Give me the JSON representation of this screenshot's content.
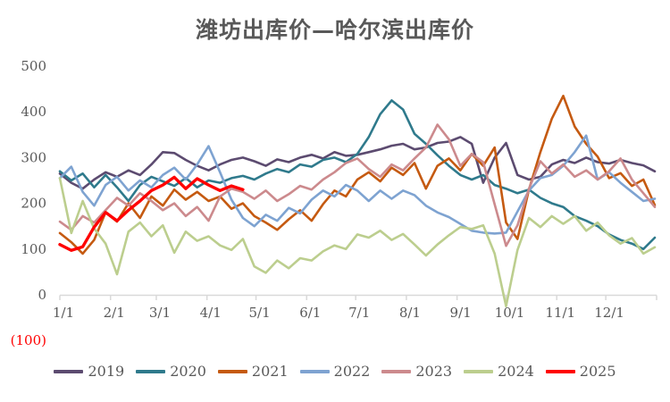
{
  "title": "潍坊出库价—哈尔滨出库价",
  "chart_data": {
    "type": "line",
    "title": "潍坊出库价—哈尔滨出库价",
    "xlabel": "",
    "ylabel": "",
    "ylim": [
      -100,
      500
    ],
    "grid": false,
    "legend_position": "bottom",
    "y_ticks": [
      {
        "label": "500",
        "value": 500,
        "color": "#595959"
      },
      {
        "label": "400",
        "value": 400,
        "color": "#595959"
      },
      {
        "label": "300",
        "value": 300,
        "color": "#595959"
      },
      {
        "label": "200",
        "value": 200,
        "color": "#595959"
      },
      {
        "label": "100",
        "value": 100,
        "color": "#595959"
      },
      {
        "label": "0",
        "value": 0,
        "color": "#595959"
      },
      {
        "label": "(100)",
        "value": -100,
        "color": "#FF0000"
      }
    ],
    "x_ticks": [
      {
        "label": "1/1",
        "day": 0
      },
      {
        "label": "2/1",
        "day": 31
      },
      {
        "label": "3/1",
        "day": 59
      },
      {
        "label": "4/1",
        "day": 90
      },
      {
        "label": "5/1",
        "day": 120
      },
      {
        "label": "6/1",
        "day": 151
      },
      {
        "label": "7/1",
        "day": 181
      },
      {
        "label": "8/1",
        "day": 212
      },
      {
        "label": "9/1",
        "day": 243
      },
      {
        "label": "10/1",
        "day": 273
      },
      {
        "label": "11/1",
        "day": 304
      },
      {
        "label": "12/1",
        "day": 334
      }
    ],
    "x_step_days": 7,
    "axis_color": "#D9D9D9",
    "series": [
      {
        "name": "2019",
        "color": "#5C4B70",
        "width": 2.6,
        "values": [
          265,
          245,
          232,
          252,
          268,
          258,
          272,
          262,
          285,
          312,
          310,
          295,
          282,
          272,
          285,
          295,
          300,
          292,
          282,
          296,
          290,
          300,
          306,
          298,
          312,
          304,
          306,
          312,
          318,
          326,
          330,
          318,
          322,
          332,
          335,
          345,
          330,
          245,
          300,
          332,
          262,
          252,
          258,
          285,
          295,
          288,
          300,
          290,
          287,
          295,
          288,
          283,
          270
        ]
      },
      {
        "name": "2020",
        "color": "#2F7A8C",
        "width": 2.6,
        "values": [
          270,
          250,
          265,
          235,
          262,
          235,
          205,
          240,
          258,
          248,
          238,
          255,
          235,
          250,
          245,
          255,
          260,
          252,
          265,
          275,
          268,
          285,
          280,
          295,
          300,
          290,
          308,
          345,
          395,
          425,
          405,
          352,
          330,
          305,
          282,
          262,
          252,
          262,
          240,
          232,
          222,
          230,
          212,
          200,
          192,
          172,
          162,
          150,
          132,
          120,
          112,
          100,
          125
        ]
      },
      {
        "name": "2021",
        "color": "#C55A11",
        "width": 2.6,
        "values": [
          135,
          115,
          90,
          120,
          180,
          160,
          200,
          168,
          215,
          195,
          230,
          208,
          225,
          205,
          215,
          188,
          200,
          172,
          158,
          142,
          165,
          185,
          162,
          198,
          228,
          215,
          252,
          268,
          248,
          278,
          262,
          288,
          232,
          282,
          298,
          272,
          308,
          282,
          322,
          158,
          122,
          230,
          312,
          385,
          435,
          368,
          330,
          302,
          255,
          266,
          238,
          252,
          196
        ]
      },
      {
        "name": "2022",
        "color": "#7EA3D1",
        "width": 2.6,
        "values": [
          255,
          280,
          225,
          195,
          240,
          258,
          228,
          250,
          235,
          262,
          278,
          252,
          285,
          325,
          268,
          208,
          168,
          150,
          175,
          162,
          190,
          178,
          208,
          228,
          215,
          240,
          228,
          205,
          228,
          210,
          228,
          218,
          195,
          180,
          170,
          155,
          140,
          136,
          134,
          136,
          182,
          228,
          255,
          262,
          282,
          312,
          348,
          252,
          268,
          245,
          225,
          205,
          210
        ]
      },
      {
        "name": "2023",
        "color": "#CC8A8D",
        "width": 2.6,
        "values": [
          160,
          142,
          172,
          158,
          185,
          212,
          195,
          222,
          205,
          185,
          200,
          172,
          192,
          162,
          215,
          232,
          225,
          210,
          228,
          205,
          220,
          238,
          230,
          252,
          268,
          288,
          298,
          275,
          258,
          285,
          272,
          298,
          322,
          372,
          340,
          282,
          308,
          290,
          198,
          107,
          152,
          232,
          292,
          265,
          285,
          258,
          272,
          252,
          270,
          298,
          252,
          222,
          192
        ]
      },
      {
        "name": "2024",
        "color": "#BCCE8E",
        "width": 2.6,
        "values": [
          255,
          135,
          205,
          145,
          112,
          45,
          138,
          158,
          128,
          152,
          92,
          138,
          118,
          128,
          108,
          98,
          122,
          62,
          48,
          75,
          58,
          80,
          75,
          95,
          108,
          100,
          132,
          125,
          140,
          120,
          133,
          110,
          86,
          110,
          130,
          148,
          144,
          152,
          90,
          -25,
          98,
          168,
          148,
          172,
          155,
          172,
          140,
          158,
          130,
          112,
          124,
          90,
          104
        ]
      },
      {
        "name": "2025",
        "color": "#FF0000",
        "width": 3.4,
        "values": [
          110,
          97,
          105,
          148,
          180,
          162,
          185,
          205,
          228,
          240,
          257,
          232,
          254,
          240,
          228,
          238,
          230
        ]
      }
    ]
  },
  "legend": {
    "items": [
      {
        "label": "2019",
        "color": "#5C4B70"
      },
      {
        "label": "2020",
        "color": "#2F7A8C"
      },
      {
        "label": "2021",
        "color": "#C55A11"
      },
      {
        "label": "2022",
        "color": "#7EA3D1"
      },
      {
        "label": "2023",
        "color": "#CC8A8D"
      },
      {
        "label": "2024",
        "color": "#BCCE8E"
      },
      {
        "label": "2025",
        "color": "#FF0000"
      }
    ]
  }
}
